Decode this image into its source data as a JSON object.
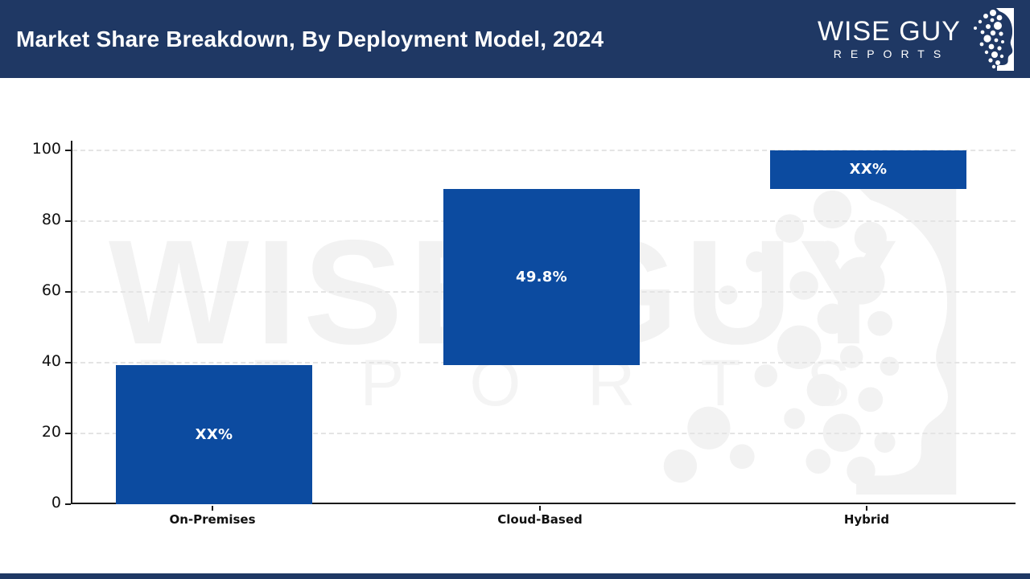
{
  "header": {
    "title": "Market Share Breakdown, By Deployment Model, 2024",
    "background_color": "#1f3864",
    "logo": {
      "line1": "WISE GUY",
      "line2": "REPORTS"
    }
  },
  "watermark": {
    "line1": "WISE GUY",
    "line2": "R E P O R T S"
  },
  "chart_data": {
    "type": "bar",
    "subtype": "waterfall",
    "title": "Market Share Breakdown, By Deployment Model, 2024",
    "categories": [
      "On-Premises",
      "Cloud-Based",
      "Hybrid"
    ],
    "segments": [
      {
        "category": "On-Premises",
        "start": 0,
        "end": 39.4,
        "label": "XX%"
      },
      {
        "category": "Cloud-Based",
        "start": 39.4,
        "end": 89.2,
        "label": "49.8%"
      },
      {
        "category": "Hybrid",
        "start": 89.2,
        "end": 100,
        "label": "XX%"
      }
    ],
    "values": [
      39.4,
      49.8,
      10.8
    ],
    "bar_labels": [
      "XX%",
      "49.8%",
      "XX%"
    ],
    "xlabel": "",
    "ylabel": "",
    "ylim": [
      0,
      100
    ],
    "yticks": [
      0,
      20,
      40,
      60,
      80,
      100
    ],
    "grid": "horizontal-dashed",
    "legend": "none",
    "bar_color": "#0c4ba0",
    "label_color": "#ffffff"
  }
}
